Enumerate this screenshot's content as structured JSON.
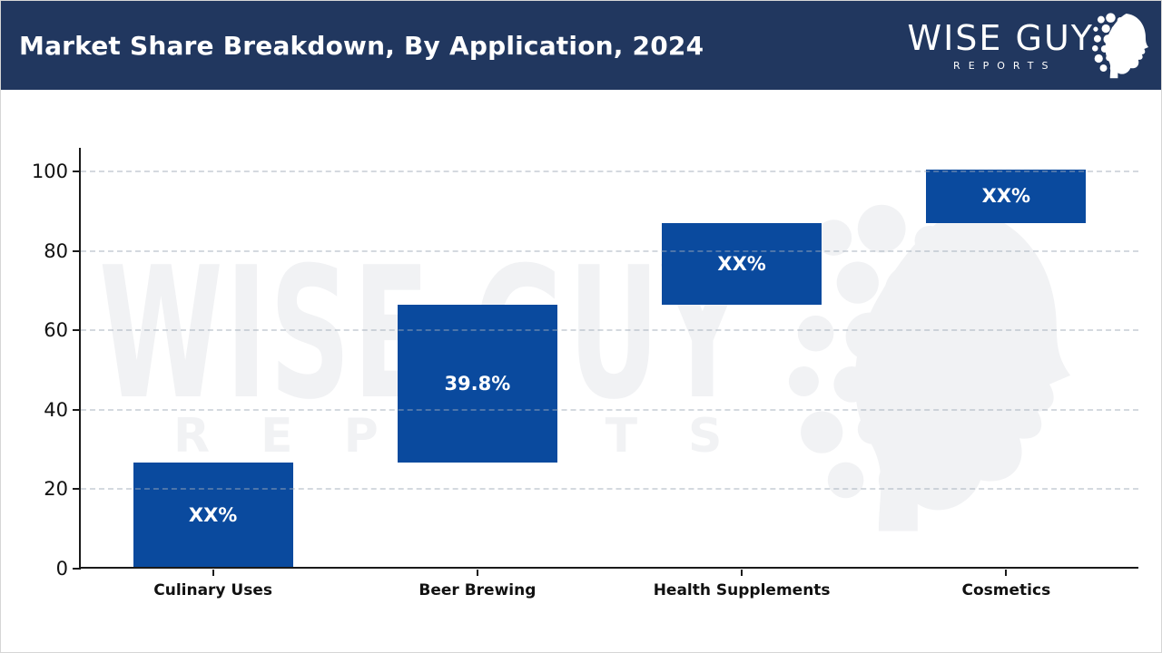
{
  "header": {
    "title": "Market Share Breakdown, By Application, 2024",
    "logo": {
      "wordmark": "WISE GUY",
      "subtext": "REPORTS"
    }
  },
  "watermark": {
    "wordmark": "WISE GUY",
    "subtext": "REPORTS"
  },
  "colors": {
    "header_bg": "#21375f",
    "bar_blue": "#0a4a9e",
    "watermark_gray": "#f1f2f4",
    "axis_black": "#1a1a1a",
    "bar_label_white": "#ffffff"
  },
  "chart_data": {
    "type": "bar",
    "subtype": "waterfall-floating-bars",
    "title": "Market Share Breakdown, By Application, 2024",
    "xlabel": "",
    "ylabel": "",
    "categories": [
      "Culinary Uses",
      "Beer Brewing",
      "Health Supplements",
      "Cosmetics"
    ],
    "segments": [
      {
        "category": "Culinary Uses",
        "start": 0,
        "end": 26.7,
        "label": "XX%"
      },
      {
        "category": "Beer Brewing",
        "start": 26.6,
        "end": 66.4,
        "label": "39.8%"
      },
      {
        "category": "Health Supplements",
        "start": 66.4,
        "end": 87.0,
        "label": "XX%"
      },
      {
        "category": "Cosmetics",
        "start": 87.0,
        "end": 100.5,
        "label": "XX%"
      }
    ],
    "yticks": [
      0,
      20,
      40,
      60,
      80,
      100
    ],
    "ylim": [
      0,
      105.5
    ],
    "grid": "horizontal-dashed",
    "legend": "none",
    "bar_color": "#0a4a9e",
    "bar_label_color": "#ffffff"
  }
}
